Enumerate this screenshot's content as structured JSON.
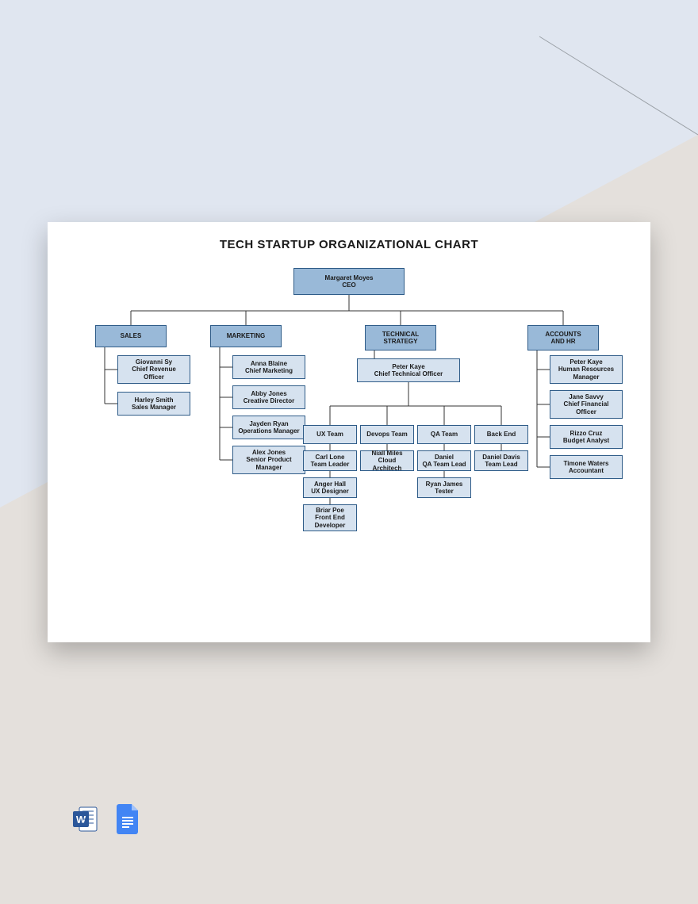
{
  "page": {
    "bg_blue": "#e0e6f0",
    "bg_beige": "#e4e0dc",
    "card_bg": "#ffffff",
    "card_shadow": "rgba(0,0,0,0.25)"
  },
  "chart": {
    "title": "TECH STARTUP ORGANIZATIONAL CHART",
    "colors": {
      "dept_fill": "#99b9d8",
      "dept_border": "#2f5c88",
      "person_fill": "#d6e2ef",
      "person_border": "#2f5c88",
      "line": "#333333"
    },
    "title_fontsize": 15,
    "node_fontsize": 8,
    "ceo": {
      "name": "Margaret Moyes",
      "role": "CEO"
    },
    "departments": [
      {
        "label": "SALES",
        "people": [
          {
            "name": "Giovanni Sy",
            "role": "Chief Revenue Officer"
          },
          {
            "name": "Harley Smith",
            "role": "Sales Manager"
          }
        ]
      },
      {
        "label": "MARKETING",
        "people": [
          {
            "name": "Anna Blaine",
            "role": "Chief Marketing"
          },
          {
            "name": "Abby Jones",
            "role": "Creative Director"
          },
          {
            "name": "Jayden Ryan",
            "role": "Operations Manager"
          },
          {
            "name": "Alex Jones",
            "role": "Senior Product Manager"
          }
        ]
      },
      {
        "label": "TECHNICAL STRATEGY",
        "head": {
          "name": "Peter Kaye",
          "role": "Chief Technical Officer"
        },
        "teams": [
          {
            "label": "UX Team",
            "people": [
              {
                "name": "Carl Lone",
                "role": "Team Leader"
              },
              {
                "name": "Anger Hall",
                "role": "UX Designer"
              },
              {
                "name": "Briar Poe",
                "role": "Front End Developer"
              }
            ]
          },
          {
            "label": "Devops Team",
            "people": [
              {
                "name": "Niall Miles",
                "role": "Cloud Architech"
              }
            ]
          },
          {
            "label": "QA Team",
            "people": [
              {
                "name": "Daniel",
                "role": "QA Team Lead"
              },
              {
                "name": "Ryan James",
                "role": "Tester"
              }
            ]
          },
          {
            "label": "Back End",
            "people": [
              {
                "name": "Daniel Davis",
                "role": "Team Lead"
              }
            ]
          }
        ]
      },
      {
        "label": "ACCOUNTS AND HR",
        "people": [
          {
            "name": "Peter Kaye",
            "role": "Human Resources Manager"
          },
          {
            "name": "Jane Savvy",
            "role": "Chief Financial Officer"
          },
          {
            "name": "Rizzo Cruz",
            "role": "Budget Analyst"
          },
          {
            "name": "Timone Waters",
            "role": "Accountant"
          }
        ]
      }
    ]
  },
  "icons": {
    "word_label": "W",
    "docs_label": ""
  }
}
